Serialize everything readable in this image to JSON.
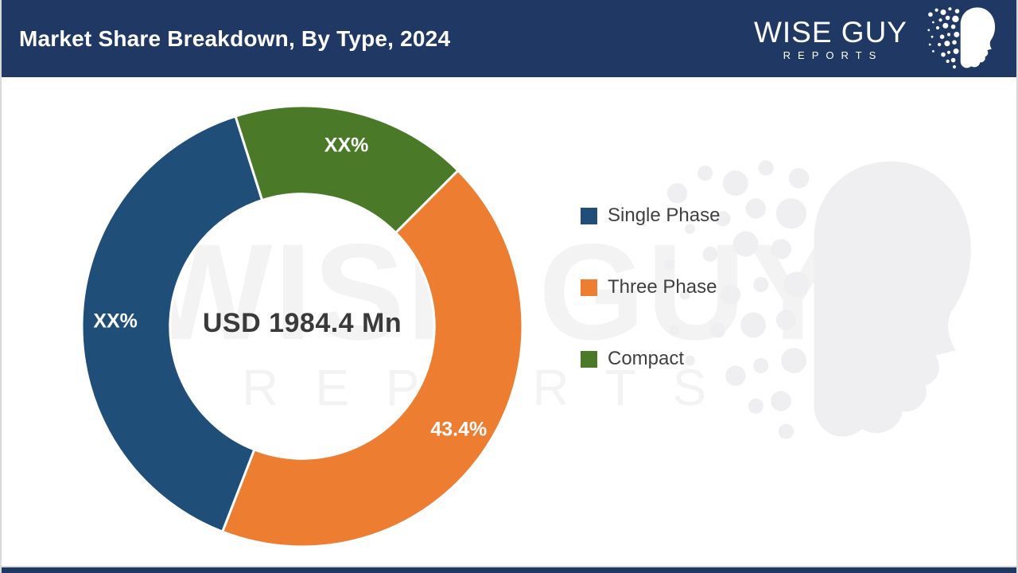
{
  "header": {
    "title": "Market Share Breakdown, By Type, 2024",
    "bg_color": "#1f3864",
    "logo": {
      "line1": "WISE GUY",
      "line2": "REPORTS"
    }
  },
  "watermark": {
    "line1": "WISE GUY",
    "line2": "REPORTS"
  },
  "center_label": "USD 1984.4 Mn",
  "legend": [
    {
      "label": "Single Phase",
      "color": "#1f4e79"
    },
    {
      "label": "Three Phase",
      "color": "#ed7d31"
    },
    {
      "label": "Compact",
      "color": "#4a7a28"
    }
  ],
  "chart_data": {
    "type": "pie",
    "subtype": "donut",
    "title": "Market Share Breakdown, By Type, 2024",
    "center_label": "USD 1984.4 Mn",
    "start_angle_deg": 45,
    "direction": "clockwise",
    "inner_radius_ratio": 0.6,
    "legend_position": "right",
    "slices": [
      {
        "name": "Three Phase",
        "label_shown": "43.4%",
        "value_pct": 43.4,
        "color": "#ed7d31"
      },
      {
        "name": "Single Phase",
        "label_shown": "XX%",
        "value_pct": 39.2,
        "color": "#1f4e79",
        "note": "displayed as XX%; 39.2 estimated from arc geometry"
      },
      {
        "name": "Compact",
        "label_shown": "XX%",
        "value_pct": 17.4,
        "color": "#4a7a28",
        "note": "displayed as XX%; 17.4 estimated from arc geometry"
      }
    ]
  }
}
